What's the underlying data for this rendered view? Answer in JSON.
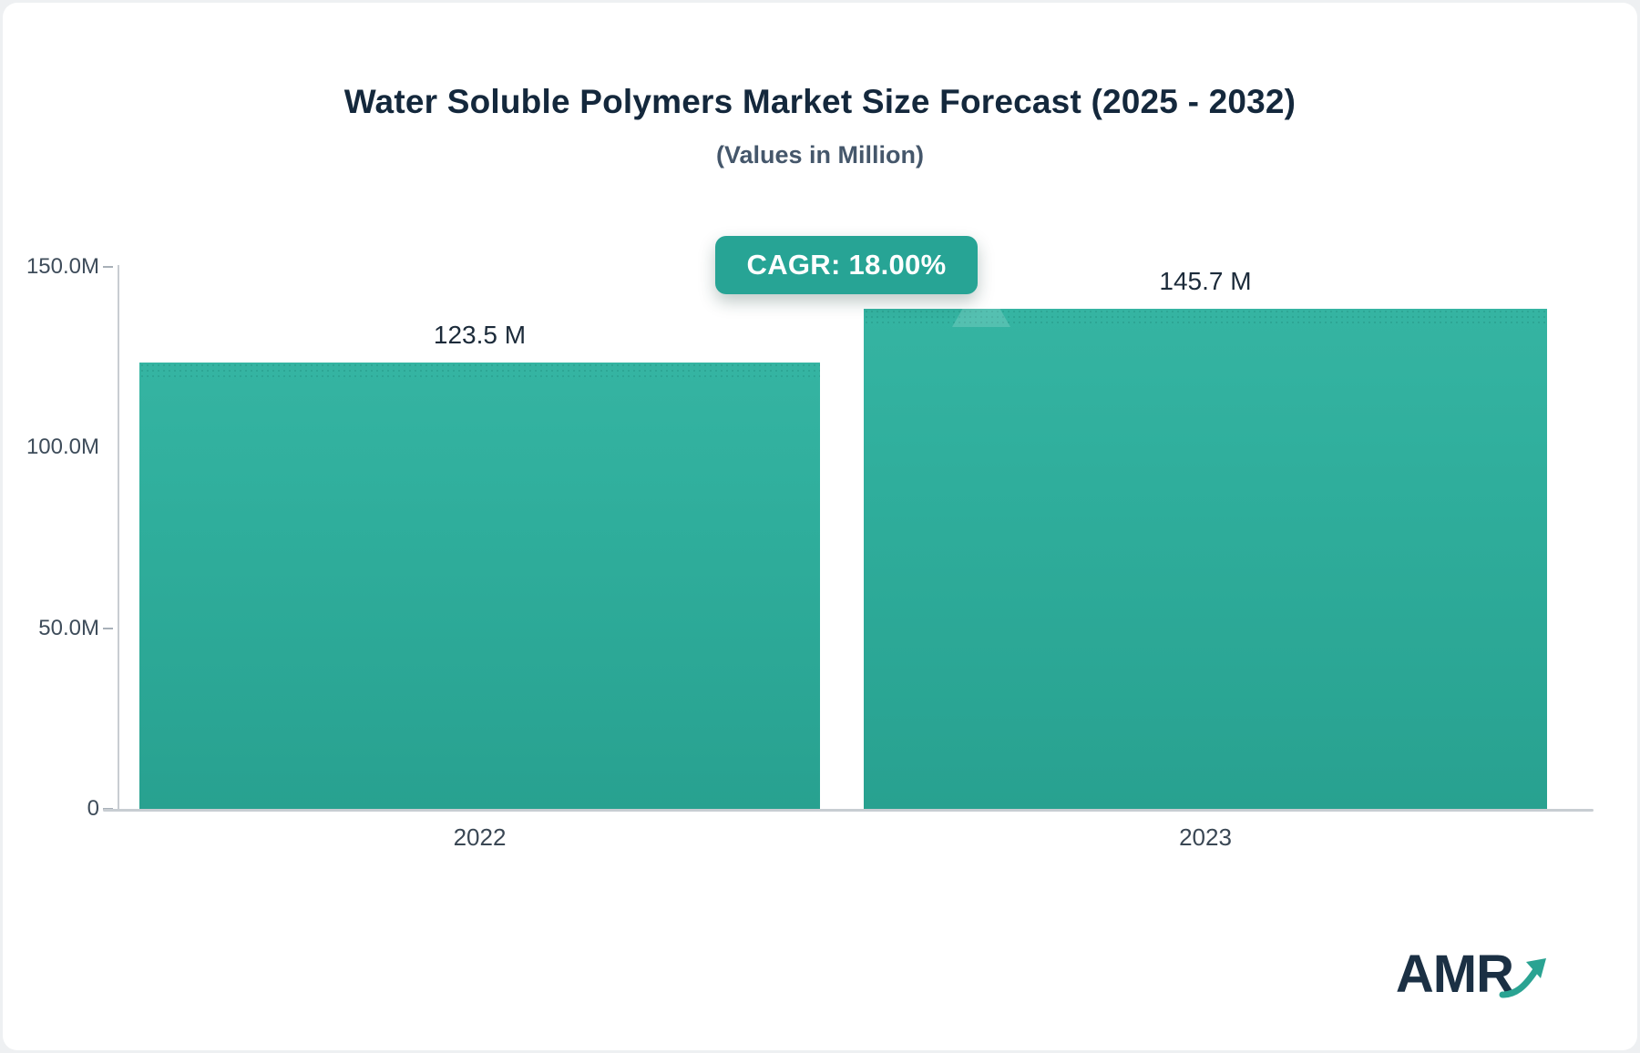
{
  "header": {
    "title": "Water Soluble Polymers Market Size Forecast (2025 - 2032)",
    "subtitle": "(Values in Million)"
  },
  "badge": {
    "label": "CAGR: 18.00%",
    "color": "#27a495"
  },
  "axis": {
    "y_ticks": [
      "150.0M",
      "100.0M",
      "50.0M",
      "0"
    ]
  },
  "bars": [
    {
      "category": "2022",
      "label": "123.5 M"
    },
    {
      "category": "2023",
      "label": "145.7 M"
    }
  ],
  "logo": {
    "text": "AMR"
  },
  "colors": {
    "bar": "#2fae9c",
    "title": "#14283c",
    "axis": "#c8cdd2"
  },
  "chart_data": {
    "type": "bar",
    "categories": [
      "2022",
      "2023"
    ],
    "values": [
      123.5,
      145.7
    ],
    "value_labels": [
      "123.5 M",
      "145.7 M"
    ],
    "title": "Water Soluble Polymers Market Size Forecast (2025 - 2032)",
    "subtitle": "(Values in Million)",
    "annotation": "CAGR: 18.00%",
    "unit": "Million",
    "xlabel": "",
    "ylabel": "",
    "ylim": [
      0,
      150
    ],
    "y_tick_labels": [
      "0",
      "50.0M",
      "100.0M",
      "150.0M"
    ],
    "grid": false,
    "legend": false,
    "bar_color": "#2fae9c"
  }
}
